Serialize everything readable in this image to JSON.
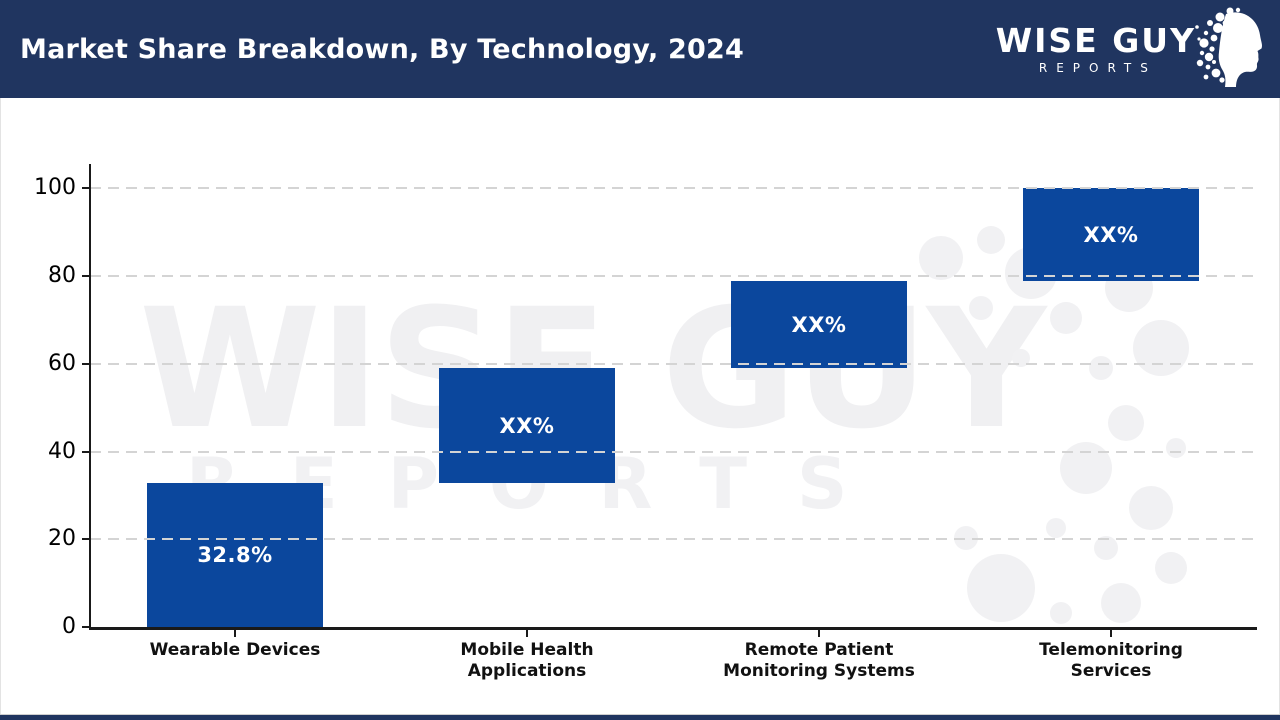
{
  "header": {
    "title": "Market Share Breakdown, By Technology, 2024",
    "logo": {
      "wordmark": "WISE GUY",
      "subtitle": "REPORTS"
    }
  },
  "watermark": {
    "wordmark": "WISE GUY",
    "subtitle": "REPORTS"
  },
  "colors": {
    "header_navy": "#203560",
    "bar_blue": "#0b479d",
    "grid_gray": "#d4d4d4",
    "axis_black": "#1a1a1a",
    "watermark_gray": "#f0f0f2"
  },
  "chart_data": {
    "type": "bar",
    "subtype": "waterfall-stacked-share",
    "title": "Market Share Breakdown, By Technology, 2024",
    "categories": [
      "Wearable Devices",
      "Mobile Health\nApplications",
      "Remote Patient\nMonitoring Systems",
      "Telemonitoring\nServices"
    ],
    "segments": [
      {
        "category": "Wearable Devices",
        "start": 0,
        "end": 32.8,
        "label": "32.8%"
      },
      {
        "category": "Mobile Health Applications",
        "start": 32.8,
        "end": 59,
        "label": "XX%"
      },
      {
        "category": "Remote Patient Monitoring Systems",
        "start": 59,
        "end": 78.8,
        "label": "XX%"
      },
      {
        "category": "Telemonitoring Services",
        "start": 78.8,
        "end": 100,
        "label": "XX%"
      }
    ],
    "xlabel": "",
    "ylabel": "",
    "yticks": [
      0,
      20,
      40,
      60,
      80,
      100
    ],
    "ylim": [
      0,
      105.5
    ],
    "grid": "horizontal-dashed-above-bars",
    "legend": "none",
    "bar_color": "#0b479d",
    "value_label_color": "#ffffff"
  }
}
